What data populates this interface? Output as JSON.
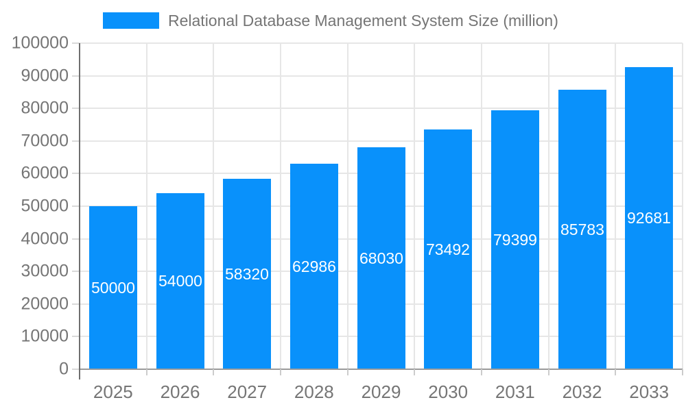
{
  "legend": {
    "swatch_icon": "series-color-swatch",
    "label": "Relational Database Management System Size (million)"
  },
  "chart_data": {
    "type": "bar",
    "title": "Relational Database Management System Size (million)",
    "categories": [
      "2025",
      "2026",
      "2027",
      "2028",
      "2029",
      "2030",
      "2031",
      "2032",
      "2033"
    ],
    "values": [
      50000,
      54000,
      58320,
      62986,
      68030,
      73492,
      79399,
      85783,
      92681
    ],
    "bar_value_labels": [
      "50000",
      "54000",
      "58320",
      "62986",
      "68030",
      "73492",
      "79399",
      "85783",
      "92681"
    ],
    "xlabel": "",
    "ylabel": "",
    "ylim": [
      0,
      100000
    ],
    "ytick_step": 10000,
    "ytick_labels": [
      "0",
      "10000",
      "20000",
      "30000",
      "40000",
      "50000",
      "60000",
      "70000",
      "80000",
      "90000",
      "100000"
    ],
    "grid": true,
    "legend_position": "top",
    "colors": {
      "bar": "#0991fb",
      "value_label": "#ffffff",
      "axis_text": "#757575",
      "gridline": "#e6e6e6",
      "y_axis_line": "#6e6e6e",
      "x_axis_line": "#9a9a9a"
    }
  }
}
